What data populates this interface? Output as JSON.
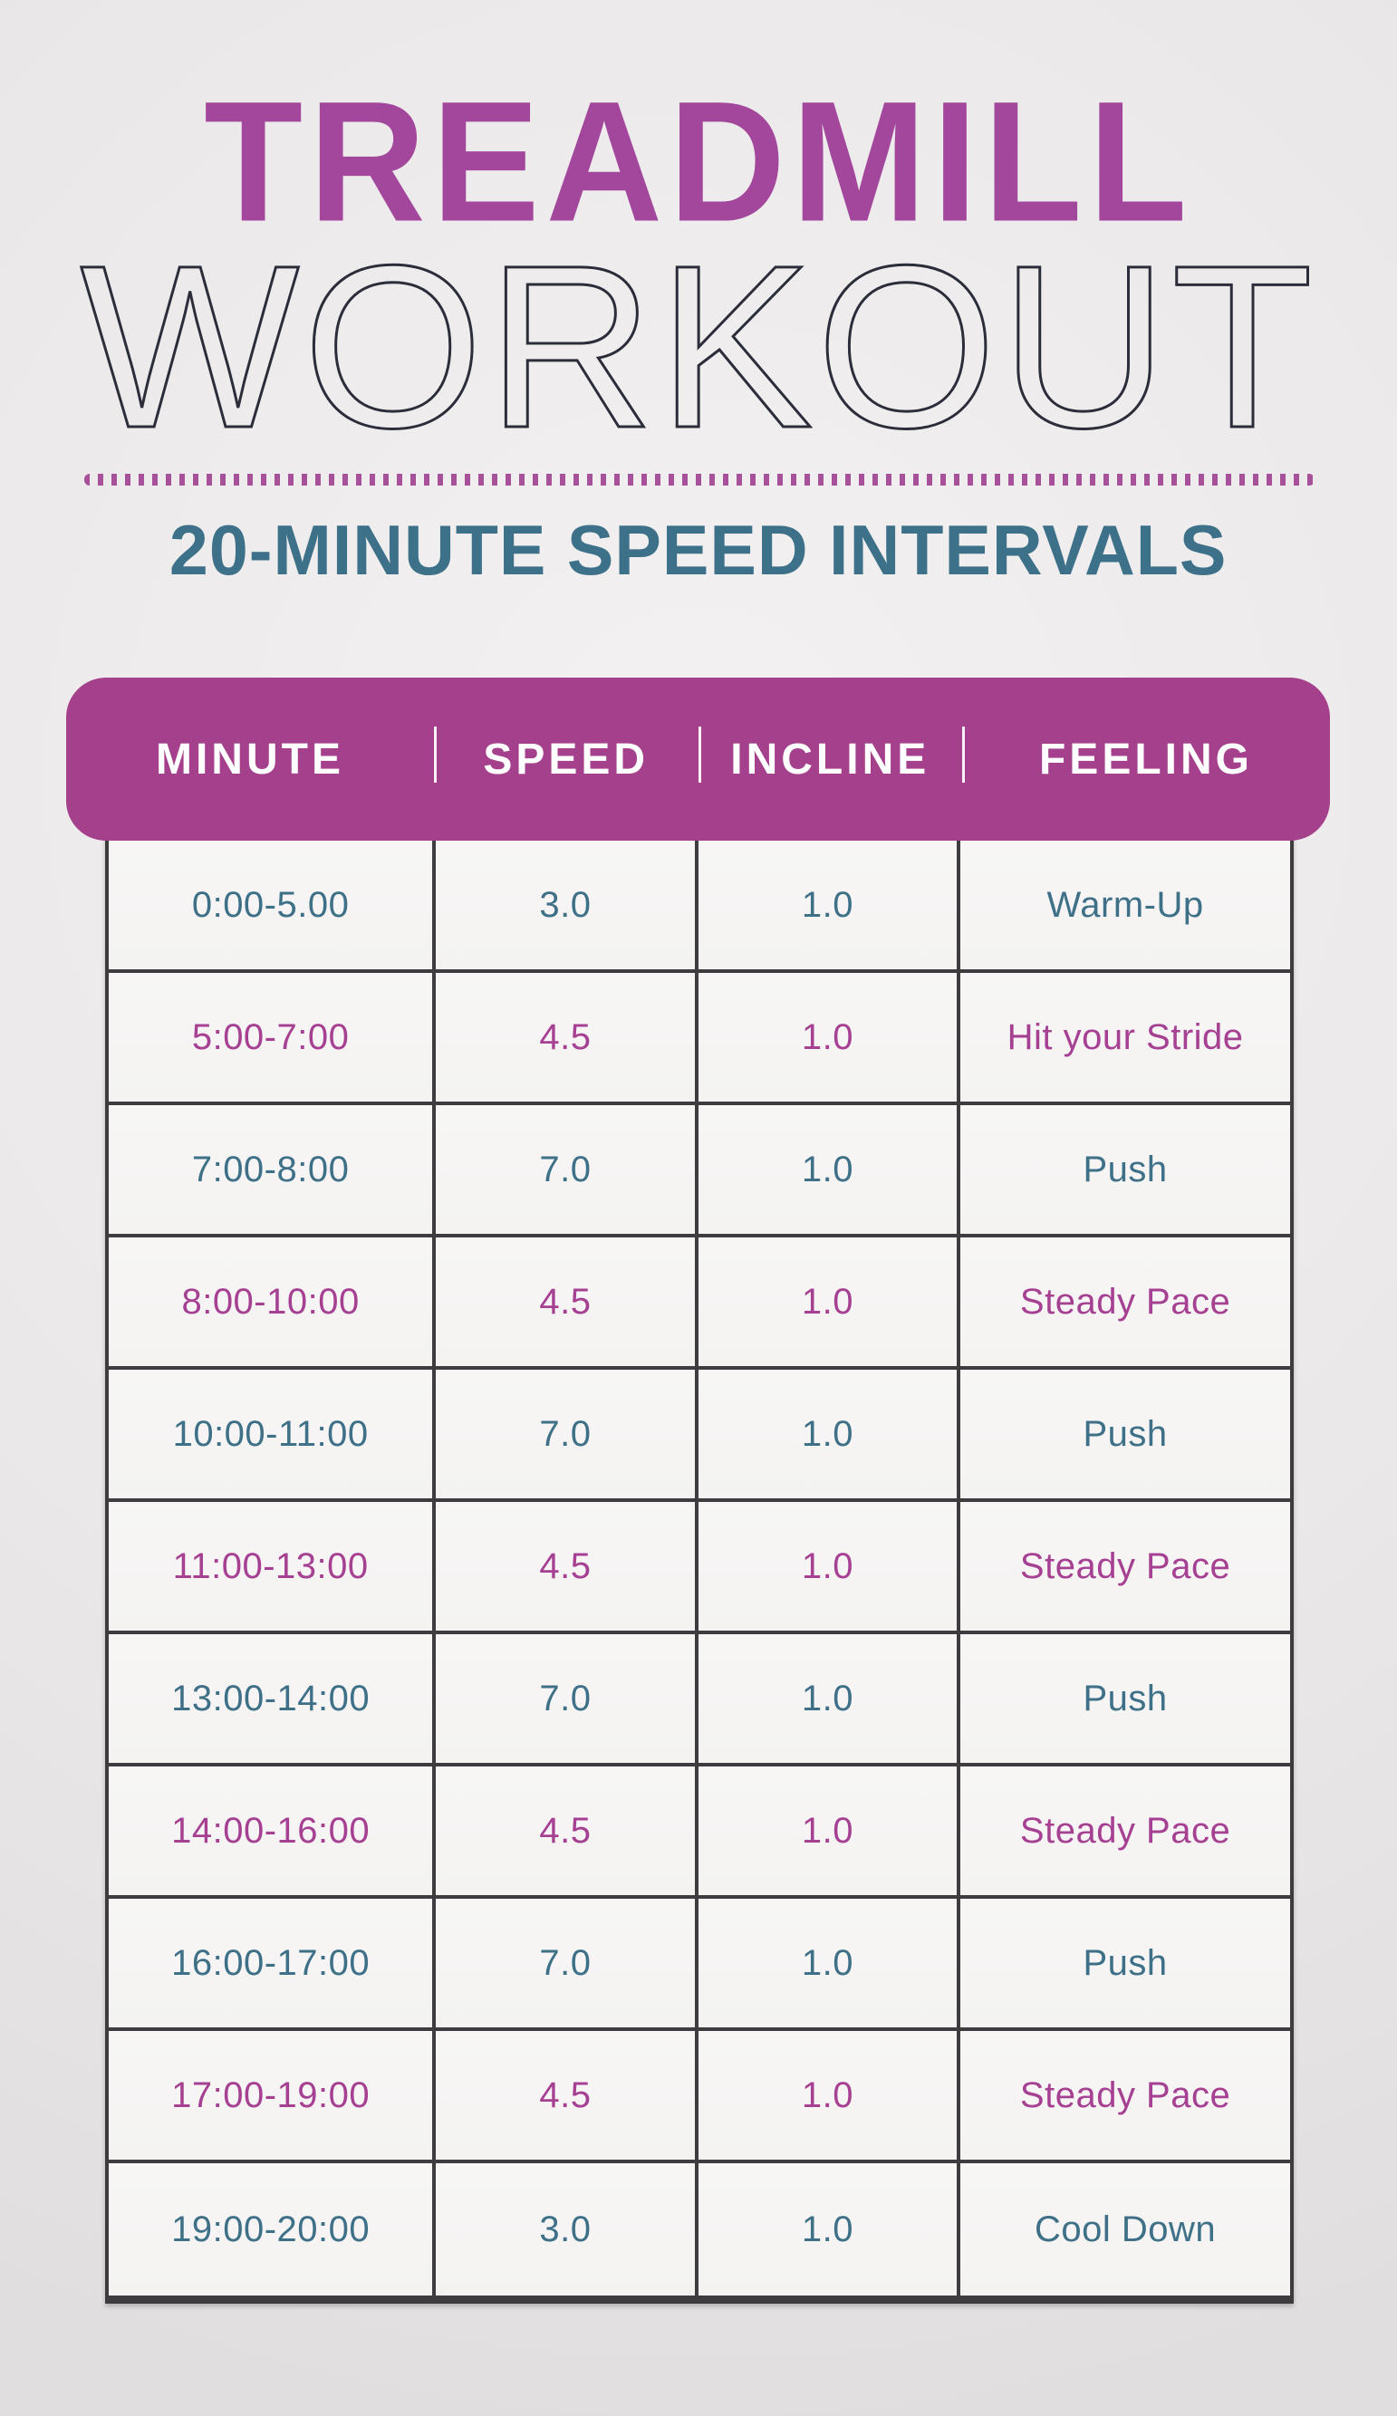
{
  "poster": {
    "title_line1": "TREADMILL",
    "title_line2": "WORKOUT",
    "subtitle": "20-MINUTE SPEED INTERVALS"
  },
  "colors": {
    "title_magenta": "#a3479d",
    "workout_outline": "#2b2d3b",
    "subtitle_teal": "#3d7089",
    "header_bar_bg": "#a4408c",
    "header_text": "#ffffff",
    "row_teal_text": "#3e7088",
    "row_magenta_text": "#a64092",
    "table_border": "#3e3c3f",
    "cell_background": "#f6f5f4",
    "page_background": "#eae8e8",
    "dotted_rule": "#a7519b"
  },
  "table": {
    "columns": [
      "MINUTE",
      "SPEED",
      "INCLINE",
      "FEELING"
    ],
    "rows": [
      {
        "minute": "0:00-5.00",
        "speed": "3.0",
        "incline": "1.0",
        "feeling": "Warm-Up",
        "color": "teal"
      },
      {
        "minute": "5:00-7:00",
        "speed": "4.5",
        "incline": "1.0",
        "feeling": "Hit your Stride",
        "color": "magenta"
      },
      {
        "minute": "7:00-8:00",
        "speed": "7.0",
        "incline": "1.0",
        "feeling": "Push",
        "color": "teal"
      },
      {
        "minute": "8:00-10:00",
        "speed": "4.5",
        "incline": "1.0",
        "feeling": "Steady Pace",
        "color": "magenta"
      },
      {
        "minute": "10:00-11:00",
        "speed": "7.0",
        "incline": "1.0",
        "feeling": "Push",
        "color": "teal"
      },
      {
        "minute": "11:00-13:00",
        "speed": "4.5",
        "incline": "1.0",
        "feeling": "Steady Pace",
        "color": "magenta"
      },
      {
        "minute": "13:00-14:00",
        "speed": "7.0",
        "incline": "1.0",
        "feeling": "Push",
        "color": "teal"
      },
      {
        "minute": "14:00-16:00",
        "speed": "4.5",
        "incline": "1.0",
        "feeling": "Steady Pace",
        "color": "magenta"
      },
      {
        "minute": "16:00-17:00",
        "speed": "7.0",
        "incline": "1.0",
        "feeling": "Push",
        "color": "teal"
      },
      {
        "minute": "17:00-19:00",
        "speed": "4.5",
        "incline": "1.0",
        "feeling": "Steady Pace",
        "color": "magenta"
      },
      {
        "minute": "19:00-20:00",
        "speed": "3.0",
        "incline": "1.0",
        "feeling": "Cool Down",
        "color": "teal"
      }
    ]
  }
}
